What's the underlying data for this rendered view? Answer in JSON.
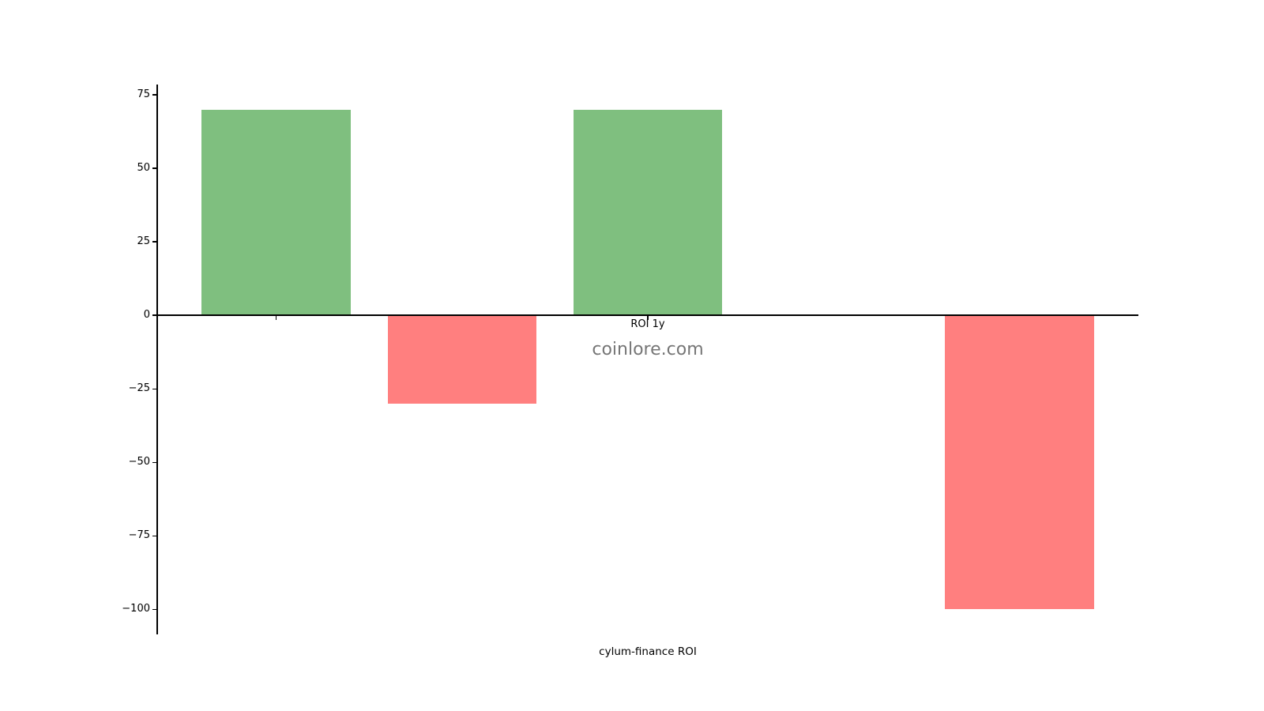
{
  "watermark": "coinlore.com",
  "chart_data": {
    "type": "bar",
    "title": "",
    "xlabel": "cylum-finance ROI",
    "ylabel": "",
    "watermark": "coinlore.com",
    "grid": false,
    "legend": false,
    "positive_color": "#7fbf7f",
    "negative_color": "#ff7f7f",
    "axis_color": "#000000",
    "watermark_color": "#767676",
    "xlim": [
      -0.64,
      4.64
    ],
    "ylim": [
      -108.5,
      78.5
    ],
    "bar_width": 0.8,
    "bars": [
      {
        "slot": 0,
        "label": "",
        "value": 70,
        "color": "#7fbf7f"
      },
      {
        "slot": 1,
        "label": "",
        "value": -30,
        "color": "#ff7f7f"
      },
      {
        "slot": 2,
        "label": "ROI 1y",
        "value": 70,
        "color": "#7fbf7f"
      },
      {
        "slot": 4,
        "label": "",
        "value": -100,
        "color": "#ff7f7f"
      }
    ],
    "y_ticks": [
      {
        "label": "75",
        "value": 75
      },
      {
        "label": "50",
        "value": 50
      },
      {
        "label": "25",
        "value": 25
      },
      {
        "label": "0",
        "value": 0
      },
      {
        "label": "−25",
        "value": -25
      },
      {
        "label": "−50",
        "value": -50
      },
      {
        "label": "−75",
        "value": -75
      },
      {
        "label": "−100",
        "value": -100
      }
    ]
  }
}
